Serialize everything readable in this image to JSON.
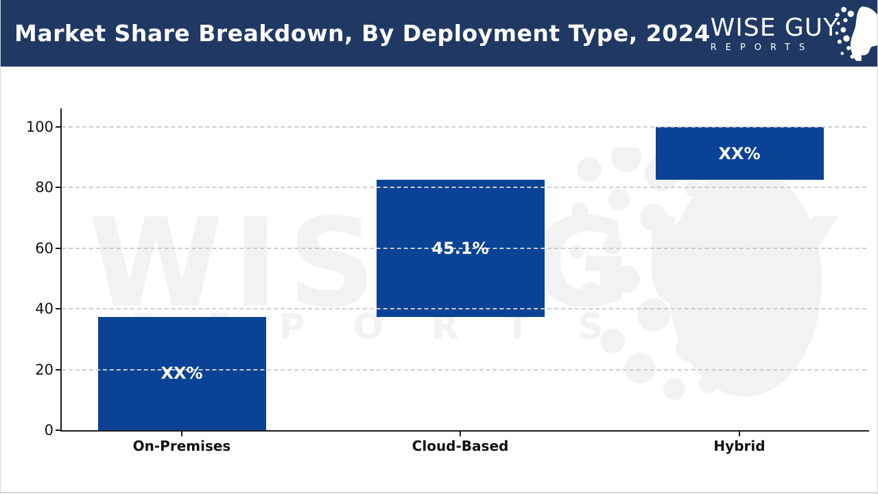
{
  "header": {
    "title": "Market Share Breakdown, By Deployment Type, 2024",
    "background_color": "#1F3864",
    "logo": {
      "wordmark": "WISE GUY",
      "subtext": "REPORTS"
    }
  },
  "watermark": {
    "line1": "WISE GUY",
    "line2": "REPORTS"
  },
  "chart_data": {
    "type": "bar",
    "subtype": "floating-waterfall",
    "title": "Market Share Breakdown, By Deployment Type, 2024",
    "categories": [
      "On-Premises",
      "Cloud-Based",
      "Hybrid"
    ],
    "series": [
      {
        "category": "On-Premises",
        "start": 0,
        "end": 37.4,
        "label": "XX%"
      },
      {
        "category": "Cloud-Based",
        "start": 37.4,
        "end": 82.5,
        "value": 45.1,
        "label": "45.1%"
      },
      {
        "category": "Hybrid",
        "start": 82.5,
        "end": 100,
        "label": "XX%"
      }
    ],
    "xlabel": "",
    "ylabel": "",
    "ylim": [
      0,
      100
    ],
    "yticks": [
      0,
      20,
      40,
      60,
      80,
      100
    ],
    "grid": "horizontal-dashed, drawn above bars",
    "legend": "none",
    "bar_color": "#0A4296",
    "bar_label_color": "#FFFFFF"
  }
}
